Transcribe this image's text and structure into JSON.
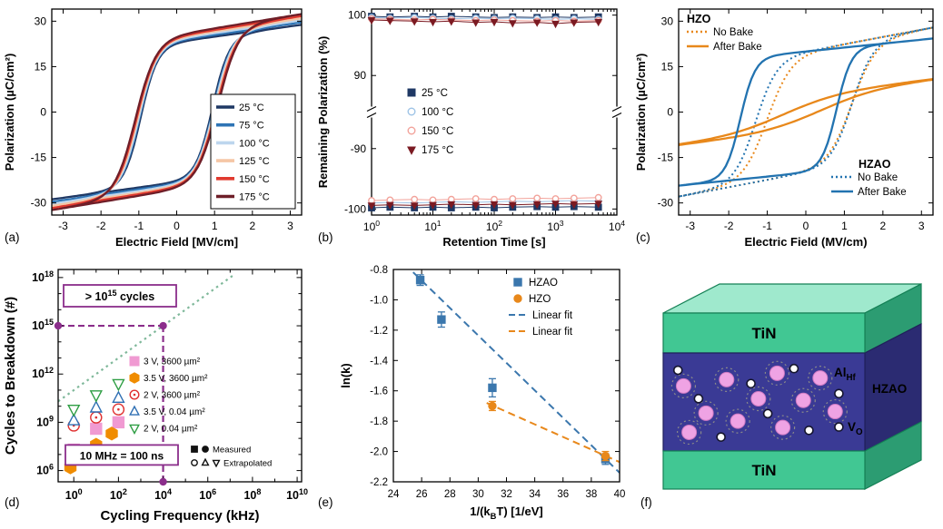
{
  "panels": {
    "a": {
      "tag": "(a)",
      "xlabel": "Electric Field [MV/cm]",
      "ylabel": "Polarization (µC/cm²)",
      "chart_data": {
        "type": "line",
        "subtype": "ferroelectric-hysteresis",
        "xlim": [
          -3.3,
          3.3
        ],
        "ylim": [
          -34,
          34
        ],
        "xticks": [
          -3,
          -2,
          -1,
          0,
          1,
          2,
          3
        ],
        "yticks": [
          -30,
          -15,
          0,
          15,
          30
        ],
        "series": [
          {
            "name": "25 °C",
            "color": "#1f3864",
            "Ps": 23.2,
            "Ec": 0.95,
            "w": 0.44,
            "chi": 1.7,
            "off": 0
          },
          {
            "name": "75 °C",
            "color": "#2e74b5",
            "Ps": 23.7,
            "Ec": 0.98,
            "w": 0.46,
            "chi": 1.8,
            "off": 0
          },
          {
            "name": "100 °C",
            "color": "#bdd6ee",
            "Ps": 24.2,
            "Ec": 1.0,
            "w": 0.48,
            "chi": 1.85,
            "off": 0
          },
          {
            "name": "125 °C",
            "color": "#f5c6a5",
            "Ps": 24.7,
            "Ec": 1.03,
            "w": 0.5,
            "chi": 1.9,
            "off": 0
          },
          {
            "name": "150 °C",
            "color": "#e03a2f",
            "Ps": 25.1,
            "Ec": 1.06,
            "w": 0.52,
            "chi": 2.0,
            "off": 0
          },
          {
            "name": "175 °C",
            "color": "#6e1e28",
            "Ps": 25.6,
            "Ec": 1.09,
            "w": 0.54,
            "chi": 2.05,
            "off": 0
          }
        ]
      }
    },
    "b": {
      "tag": "(b)",
      "xlabel": "Retention Time [s]",
      "ylabel": "Remaining Polarization (%)",
      "chart_data": {
        "type": "scatter",
        "subtype": "retention-broken-axis",
        "xscale": "log",
        "xlim": [
          1,
          10000
        ],
        "top_ylim": [
          85,
          101
        ],
        "bot_ylim": [
          -101,
          -85
        ],
        "yticks_top": [
          100,
          90
        ],
        "yticks_bot": [
          -90,
          -100
        ],
        "times": [
          1,
          2,
          5,
          10,
          20,
          50,
          100,
          200,
          500,
          1000,
          2000,
          5000
        ],
        "series": [
          {
            "name": "25 °C",
            "color": "#1f3864",
            "marker": "square",
            "filled": true,
            "pos": [
              99.8,
              99.7,
              99.8,
              99.7,
              99.8,
              99.7,
              99.6,
              99.7,
              99.6,
              99.7,
              99.6,
              99.7
            ],
            "neg": [
              -99.8,
              -99.7,
              -99.8,
              -99.7,
              -99.8,
              -99.7,
              -99.8,
              -99.7,
              -99.6,
              -99.7,
              -99.6,
              -99.7
            ]
          },
          {
            "name": "100 °C",
            "color": "#9dc3e6",
            "marker": "circle",
            "filled": false,
            "pos": [
              99.6,
              99.5,
              99.6,
              99.5,
              99.4,
              99.5,
              99.4,
              99.5,
              99.4,
              99.3,
              99.4,
              99.3
            ],
            "neg": [
              -99.0,
              -98.9,
              -99.0,
              -98.9,
              -98.8,
              -98.9,
              -98.8,
              -98.7,
              -98.8,
              -98.7,
              -98.6,
              -98.7
            ]
          },
          {
            "name": "150 °C",
            "color": "#f2a29a",
            "marker": "circle",
            "filled": false,
            "pos": [
              99.4,
              99.3,
              99.2,
              99.3,
              99.2,
              99.1,
              99.2,
              99.1,
              99.0,
              99.1,
              99.0,
              99.1
            ],
            "neg": [
              -98.6,
              -98.5,
              -98.4,
              -98.5,
              -98.4,
              -98.3,
              -98.4,
              -98.3,
              -98.2,
              -98.3,
              -98.2,
              -98.1
            ]
          },
          {
            "name": "175 °C",
            "color": "#7b1a22",
            "marker": "triangle-down",
            "filled": true,
            "pos": [
              99.2,
              99.1,
              99.0,
              98.9,
              99.0,
              98.8,
              98.9,
              98.7,
              98.8,
              98.6,
              98.8,
              98.9
            ],
            "neg": [
              -99.4,
              -99.3,
              -99.4,
              -99.3,
              -99.2,
              -99.3,
              -99.2,
              -99.3,
              -99.2,
              -99.1,
              -99.2,
              -99.1
            ]
          }
        ]
      }
    },
    "c": {
      "tag": "(c)",
      "xlabel": "Electric Field (MV/cm)",
      "ylabel": "Polarization (µC/cm²)",
      "chart_data": {
        "type": "line",
        "subtype": "ferroelectric-hysteresis",
        "xlim": [
          -3.3,
          3.3
        ],
        "ylim": [
          -34,
          34
        ],
        "xticks": [
          -3,
          -2,
          -1,
          0,
          1,
          2,
          3
        ],
        "yticks": [
          -30,
          -15,
          0,
          15,
          30
        ],
        "series": [
          {
            "name": "HZO No Bake",
            "color": "#e8881b",
            "dash": "dotted",
            "Ps": 20,
            "Ec": 1.1,
            "w": 0.62,
            "chi": 2.4,
            "off": 0.1
          },
          {
            "name": "HZAO No Bake",
            "color": "#2273b0",
            "dash": "dotted",
            "Ps": 20,
            "Ec": 1.25,
            "w": 0.55,
            "chi": 2.4,
            "off": -0.05
          },
          {
            "name": "HZO After Bake",
            "color": "#e8881b",
            "dash": "solid",
            "Ps": 6,
            "Ec": 0.5,
            "w": 1.5,
            "chi": 1.5,
            "off": -0.1
          },
          {
            "name": "HZAO After Bake",
            "color": "#2273b0",
            "dash": "solid",
            "Ps": 20,
            "Ec": 1.25,
            "w": 0.38,
            "chi": 1.3,
            "off": -0.45
          }
        ],
        "legend_top": {
          "title": "HZO",
          "color": "#e8881b",
          "entries": [
            {
              "label": "No Bake",
              "dash": "dotted"
            },
            {
              "label": "After Bake",
              "dash": "solid"
            }
          ]
        },
        "legend_bottom": {
          "title": "HZAO",
          "color": "#2273b0",
          "entries": [
            {
              "label": "No Bake",
              "dash": "dotted"
            },
            {
              "label": "After Bake",
              "dash": "solid"
            }
          ]
        }
      }
    },
    "d": {
      "tag": "(d)",
      "xlabel": "Cycling Frequency (kHz)",
      "ylabel": "Cycles to Breakdown (#)",
      "chart_data": {
        "type": "scatter",
        "xscale": "log",
        "yscale": "log",
        "xlim_log": [
          -0.7,
          10.2
        ],
        "ylim_log": [
          5.3,
          18.5
        ],
        "xtick_exp": [
          0,
          2,
          4,
          6,
          8,
          10
        ],
        "ytick_exp": [
          6,
          9,
          12,
          15,
          18
        ],
        "trend": {
          "color": "#7fb89a",
          "x1": -0.7,
          "y1": 10.3,
          "x2": 7.2,
          "y2": 18.2
        },
        "guide": {
          "color": "#8b2e8b",
          "x_log": 4,
          "y_log": 15
        },
        "ann_top": "> 10^{15} cycles",
        "ann_bottom": "10 MHz = 100 ns",
        "series": [
          {
            "name": "3 V, 3600 µm²",
            "marker": "square",
            "color": "#f09ad2",
            "filled": true,
            "x_log": [
              0,
              1,
              2
            ],
            "y_log": [
              7.3,
              8.6,
              9.0
            ]
          },
          {
            "name": "3.5 V, 3600 µm²",
            "marker": "hexagon",
            "color": "#f08c00",
            "filled": true,
            "x_log": [
              -0.15,
              1,
              1.7
            ],
            "y_log": [
              6.2,
              7.6,
              8.3
            ]
          },
          {
            "name": "2 V, 3600 µm²",
            "marker": "circle-dot",
            "color": "#e03131",
            "filled": false,
            "x_log": [
              0,
              1,
              2
            ],
            "y_log": [
              8.8,
              9.3,
              9.8
            ]
          },
          {
            "name": "3.5 V, 0.04 µm²",
            "marker": "triangle-up",
            "color": "#2f6fb3",
            "filled": false,
            "x_log": [
              0,
              1,
              2
            ],
            "y_log": [
              9.1,
              9.9,
              10.5
            ]
          },
          {
            "name": "2 V, 0.04 µm²",
            "marker": "triangle-down",
            "color": "#2f9e44",
            "filled": false,
            "x_log": [
              0,
              1,
              2
            ],
            "y_log": [
              9.8,
              10.7,
              11.4
            ]
          }
        ],
        "sub_legend": {
          "measured": "Measured",
          "extrapolated": "Extrapolated"
        }
      }
    },
    "e": {
      "tag": "(e)",
      "xlabel": "1/(k_{B}T) [1/eV]",
      "ylabel": "ln(k)",
      "chart_data": {
        "type": "scatter",
        "xlim": [
          24,
          40
        ],
        "ylim": [
          -2.2,
          -0.8
        ],
        "xticks": [
          24,
          26,
          28,
          30,
          32,
          34,
          36,
          38,
          40
        ],
        "yticks": [
          -0.8,
          -1.0,
          -1.2,
          -1.4,
          -1.6,
          -1.8,
          -2.0,
          -2.2
        ],
        "series": [
          {
            "name": "HZAO",
            "marker": "square",
            "color": "#3b77ad",
            "filled": true,
            "x": [
              25.9,
              27.4,
              31.0,
              39.0
            ],
            "y": [
              -0.87,
              -1.13,
              -1.58,
              -2.05
            ],
            "err": [
              0.035,
              0.05,
              0.06,
              0.035
            ]
          },
          {
            "name": "HZO",
            "marker": "circle",
            "color": "#e8881b",
            "filled": true,
            "x": [
              31.0,
              39.0
            ],
            "y": [
              -1.7,
              -2.03
            ],
            "err": [
              0.03,
              0.03
            ]
          }
        ],
        "fits": [
          {
            "name": "Linear fit",
            "color": "#3b77ad",
            "x1": 24.2,
            "y1": -0.71,
            "x2": 40,
            "y2": -2.14
          },
          {
            "name": "Linear fit",
            "color": "#e8881b",
            "x1": 30.6,
            "y1": -1.68,
            "x2": 40,
            "y2": -2.07
          }
        ]
      }
    },
    "f": {
      "tag": "(f)",
      "labels": {
        "top_electrode": "TiN",
        "bottom_electrode": "TiN",
        "film": "HZAO",
        "dopant": "Al_{Hf}",
        "vacancy": "V_{O}"
      },
      "colors": {
        "tin_front": "#41c793",
        "tin_top": "#9fe9cd",
        "tin_side": "#2c9c72",
        "tin_edge": "#148055",
        "hzao_front": "#3a3a95",
        "hzao_side": "#2b2b72",
        "hzao_edge": "#20205a",
        "dopant": "#efa3e4",
        "dopant_edge": "#cf79c2",
        "ring": "#8a8a8a",
        "vacancy_fill": "#ffffff",
        "vacancy_edge": "#15152e"
      },
      "dopants": [
        [
          0.07,
          0.3
        ],
        [
          0.19,
          0.64
        ],
        [
          0.1,
          0.88
        ],
        [
          0.3,
          0.22
        ],
        [
          0.36,
          0.74
        ],
        [
          0.47,
          0.46
        ],
        [
          0.57,
          0.14
        ],
        [
          0.6,
          0.82
        ],
        [
          0.71,
          0.48
        ],
        [
          0.8,
          0.2
        ],
        [
          0.88,
          0.62
        ]
      ],
      "vacancies": [
        [
          0.04,
          0.12
        ],
        [
          0.15,
          0.46
        ],
        [
          0.27,
          0.92
        ],
        [
          0.43,
          0.28
        ],
        [
          0.52,
          0.64
        ],
        [
          0.66,
          0.1
        ],
        [
          0.74,
          0.84
        ],
        [
          0.9,
          0.4
        ],
        [
          0.9,
          0.8
        ]
      ]
    }
  }
}
